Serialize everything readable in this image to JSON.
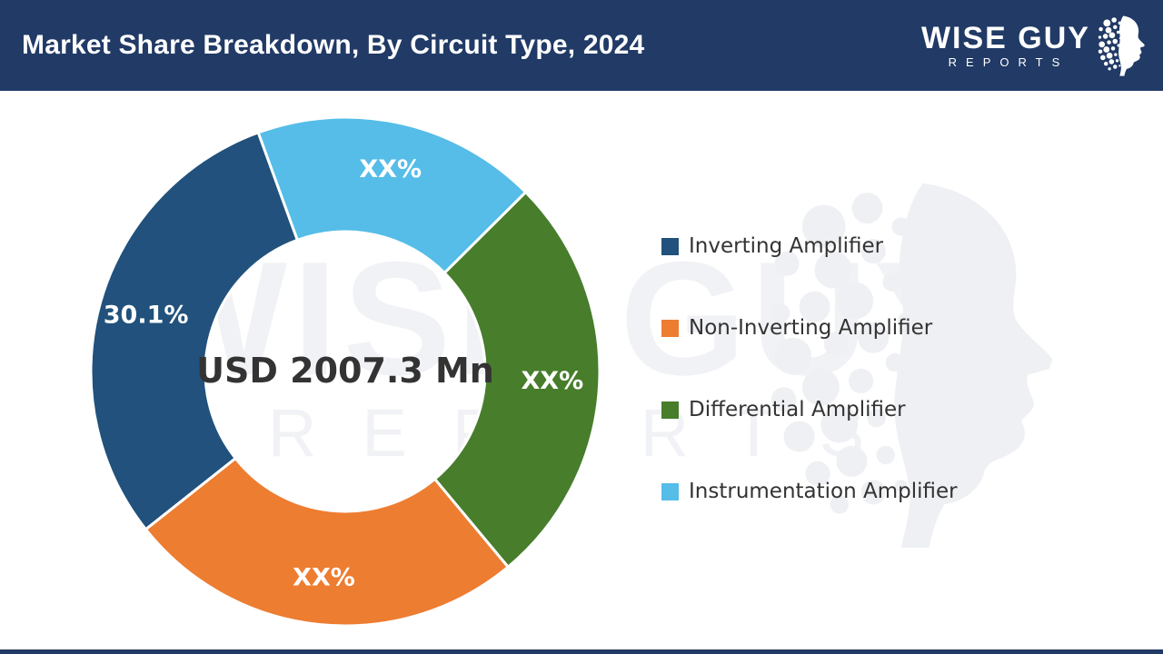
{
  "header": {
    "title": "Market Share Breakdown, By Circuit Type, 2024",
    "logo": {
      "line1": "WISE GUY",
      "line2": "REPORTS"
    }
  },
  "watermark": {
    "line1": "WISE GUY",
    "line2": "REPORTS"
  },
  "chart_data": {
    "type": "pie",
    "subtype": "donut",
    "center_label": "USD 2007.3 Mn",
    "start_angle_deg": 110,
    "direction": "counterclockwise",
    "inner_radius_ratio": 0.55,
    "legend_position": "right",
    "slices": [
      {
        "label": "Inverting Amplifier",
        "value_pct": 30.1,
        "display": "30.1%",
        "color": "#21517c"
      },
      {
        "label": "Non-Inverting Amplifier",
        "value_pct": 25.4,
        "display": "XX%",
        "color": "#ed7d31"
      },
      {
        "label": "Differential Amplifier",
        "value_pct": 26.4,
        "display": "XX%",
        "color": "#477d2b"
      },
      {
        "label": "Instrumentation Amplifier",
        "value_pct": 18.1,
        "display": "XX%",
        "color": "#55bde8"
      }
    ]
  },
  "colors": {
    "header_bg": "#213a66",
    "title_text": "#ffffff",
    "center_text": "#333333",
    "legend_text": "#333333",
    "watermark": "#f1f2f5"
  }
}
